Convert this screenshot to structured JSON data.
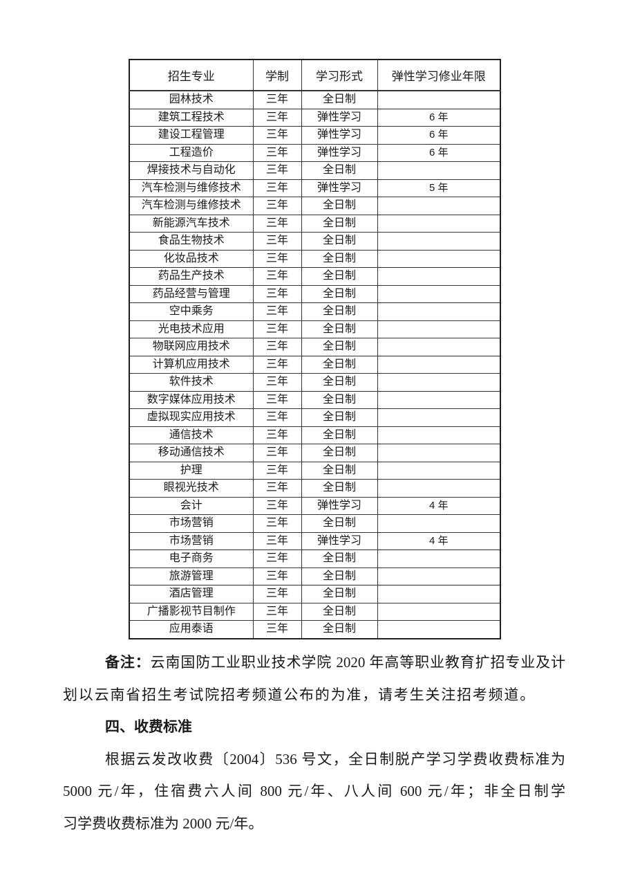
{
  "page": {
    "background": "#ffffff",
    "text_color": "#1a1a1a",
    "border_color": "#333333"
  },
  "table": {
    "headers": [
      "招生专业",
      "学制",
      "学习形式",
      "弹性学习修业年限"
    ],
    "rows": [
      [
        "园林技术",
        "三年",
        "全日制",
        ""
      ],
      [
        "建筑工程技术",
        "三年",
        "弹性学习",
        "6 年"
      ],
      [
        "建设工程管理",
        "三年",
        "弹性学习",
        "6 年"
      ],
      [
        "工程造价",
        "三年",
        "弹性学习",
        "6 年"
      ],
      [
        "焊接技术与自动化",
        "三年",
        "全日制",
        ""
      ],
      [
        "汽车检测与维修技术",
        "三年",
        "弹性学习",
        "5 年"
      ],
      [
        "汽车检测与维修技术",
        "三年",
        "全日制",
        ""
      ],
      [
        "新能源汽车技术",
        "三年",
        "全日制",
        ""
      ],
      [
        "食品生物技术",
        "三年",
        "全日制",
        ""
      ],
      [
        "化妆品技术",
        "三年",
        "全日制",
        ""
      ],
      [
        "药品生产技术",
        "三年",
        "全日制",
        ""
      ],
      [
        "药品经营与管理",
        "三年",
        "全日制",
        ""
      ],
      [
        "空中乘务",
        "三年",
        "全日制",
        ""
      ],
      [
        "光电技术应用",
        "三年",
        "全日制",
        ""
      ],
      [
        "物联网应用技术",
        "三年",
        "全日制",
        ""
      ],
      [
        "计算机应用技术",
        "三年",
        "全日制",
        ""
      ],
      [
        "软件技术",
        "三年",
        "全日制",
        ""
      ],
      [
        "数字媒体应用技术",
        "三年",
        "全日制",
        ""
      ],
      [
        "虚拟现实应用技术",
        "三年",
        "全日制",
        ""
      ],
      [
        "通信技术",
        "三年",
        "全日制",
        ""
      ],
      [
        "移动通信技术",
        "三年",
        "全日制",
        ""
      ],
      [
        "护理",
        "三年",
        "全日制",
        ""
      ],
      [
        "眼视光技术",
        "三年",
        "全日制",
        ""
      ],
      [
        "会计",
        "三年",
        "弹性学习",
        "4 年"
      ],
      [
        "市场营销",
        "三年",
        "全日制",
        ""
      ],
      [
        "市场营销",
        "三年",
        "弹性学习",
        "4 年"
      ],
      [
        "电子商务",
        "三年",
        "全日制",
        ""
      ],
      [
        "旅游管理",
        "三年",
        "全日制",
        ""
      ],
      [
        "酒店管理",
        "三年",
        "全日制",
        ""
      ],
      [
        "广播影视节目制作",
        "三年",
        "全日制",
        ""
      ],
      [
        "应用泰语",
        "三年",
        "全日制",
        ""
      ]
    ]
  },
  "note": {
    "label": "备注：",
    "line1": "云南国防工业职业技术学院 2020 年高等职业教育扩招专业及计",
    "line2": "划以云南省招生考试院招考频道公布的为准，请考生关注招考频道。"
  },
  "section": {
    "heading": "四、收费标准"
  },
  "fees": {
    "line1": "根据云发改收费〔2004〕536 号文，全日制脱产学习学费收费标准为",
    "line2": "5000 元/年，住宿费六人间 800 元/年、八人间 600 元/年；非全日制学",
    "line3": "习学费收费标准为 2000 元/年。"
  }
}
